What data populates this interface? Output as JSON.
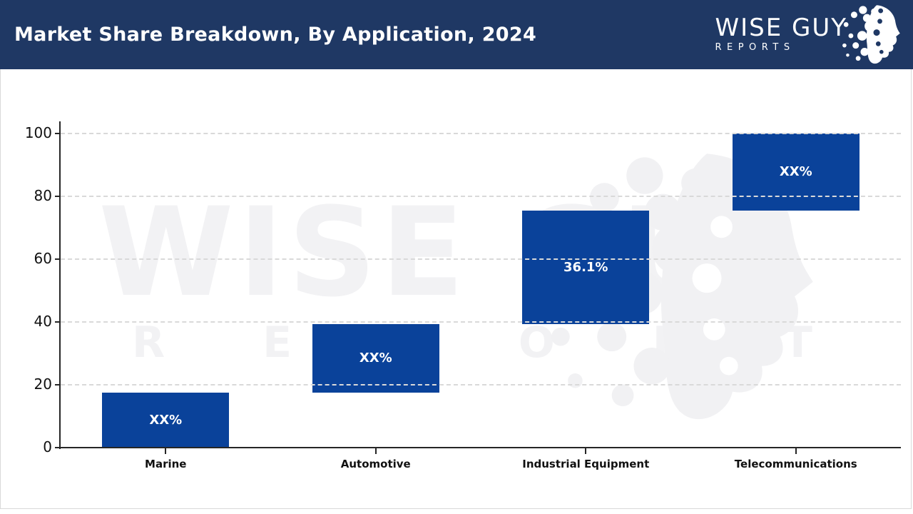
{
  "header": {
    "title": "Market Share Breakdown, By Application, 2024",
    "logo": {
      "line1": "WISE GUY",
      "line2": "REPORTS"
    }
  },
  "watermark": {
    "line1": "WISE GU",
    "line2": "R E P O R T S"
  },
  "colors": {
    "header_bg": "#1f3864",
    "bar": "#0a429a",
    "grid": "#d9d9d9",
    "axis": "#262626",
    "tick_text": "#111111",
    "bar_label": "#ffffff",
    "watermark": "#f2f2f4"
  },
  "chart_data": {
    "type": "bar",
    "subtype": "waterfall",
    "title": "Market Share Breakdown, By Application, 2024",
    "categories": [
      "Marine",
      "Automotive",
      "Industrial Equipment",
      "Telecommunications"
    ],
    "segments": [
      {
        "category": "Marine",
        "start": 0,
        "end": 17.5,
        "label": "XX%"
      },
      {
        "category": "Automotive",
        "start": 17.5,
        "end": 39.4,
        "label": "XX%"
      },
      {
        "category": "Industrial Equipment",
        "start": 39.4,
        "end": 75.5,
        "label": "36.1%"
      },
      {
        "category": "Telecommunications",
        "start": 75.5,
        "end": 100,
        "label": "XX%"
      }
    ],
    "y_ticks": [
      0,
      20,
      40,
      60,
      80,
      100
    ],
    "ylim": [
      0,
      100
    ],
    "xlabel": "",
    "ylabel": "",
    "grid": "horizontal-dashed, drawn over bars",
    "legend": "none"
  }
}
